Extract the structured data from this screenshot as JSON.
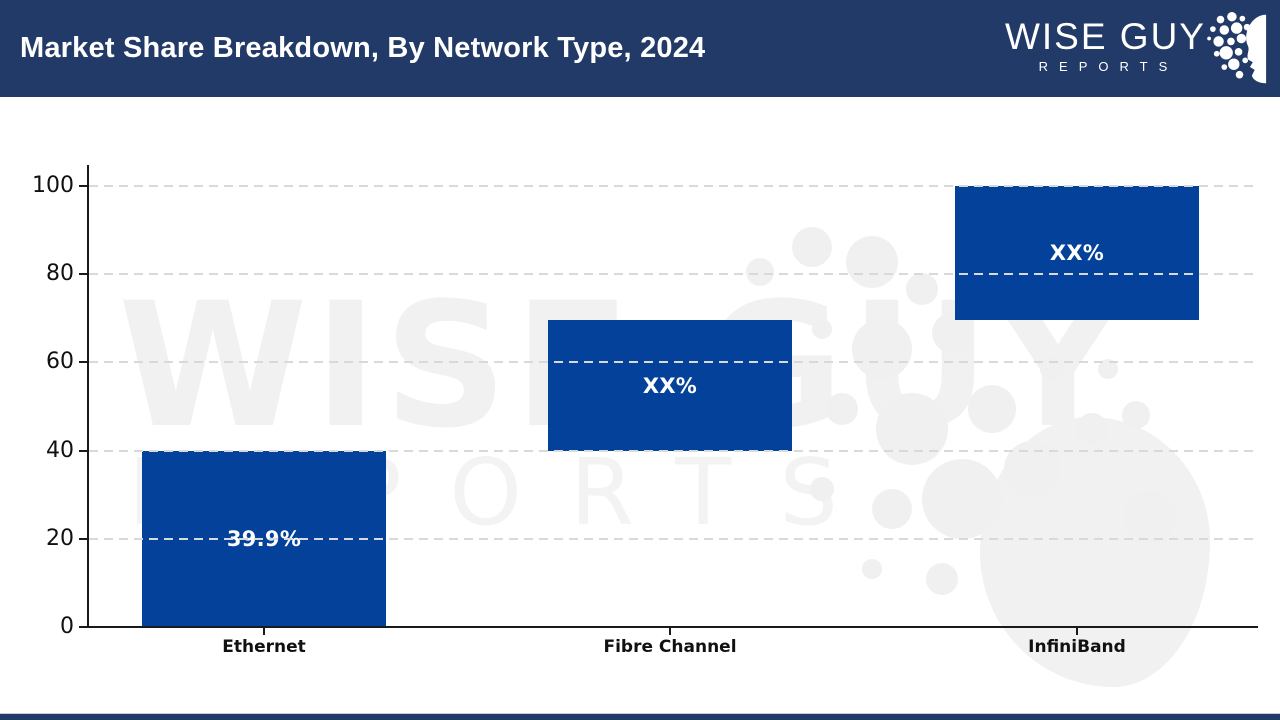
{
  "header": {
    "title": "Market Share Breakdown, By Network Type, 2024",
    "logo": {
      "line1": "WISE GUY",
      "line2": "REPORTS"
    }
  },
  "watermark": {
    "line1": "WISE GUY",
    "line2": "REPORTS"
  },
  "chart_data": {
    "type": "bar",
    "subtype": "waterfall-breakdown",
    "title": "Market Share Breakdown, By Network Type, 2024",
    "categories": [
      "Ethernet",
      "Fibre Channel",
      "InfiniBand"
    ],
    "segments": [
      {
        "category": "Ethernet",
        "start": 0,
        "end": 39.9,
        "label": "39.9%"
      },
      {
        "category": "Fibre Channel",
        "start": 39.9,
        "end": 69.6,
        "label": "XX%"
      },
      {
        "category": "InfiniBand",
        "start": 69.6,
        "end": 100,
        "label": "XX%"
      }
    ],
    "xlabel": "",
    "ylabel": "",
    "ylim": [
      0,
      105
    ],
    "yticks": [
      0,
      20,
      40,
      60,
      80,
      100
    ],
    "grid": "horizontal-dashed, drawn over bars",
    "legend": "none",
    "bar_color": "#04419A",
    "value_label_color": "#ffffff"
  },
  "colors": {
    "header_bg": "#223A67",
    "footer_bg": "#223A67",
    "bar": "#04419A",
    "gridline": "#d9d9d9",
    "axis": "#1a1a1a",
    "watermark": "#f1f1f2"
  }
}
